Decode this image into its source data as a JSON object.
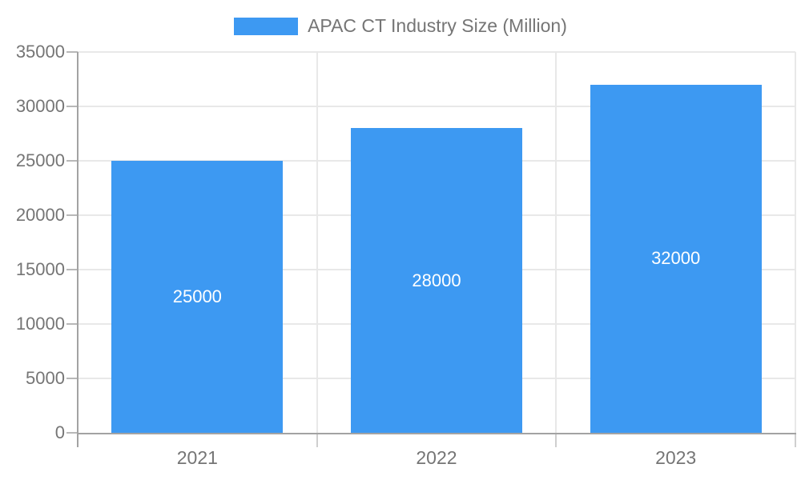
{
  "legend": {
    "label": "APAC CT Industry Size (Million)"
  },
  "colors": {
    "bar": "#3D99F2",
    "axis_line": "#A3A3A3",
    "grid_line": "#E8E8E8",
    "y_tick": "#B8B8B8",
    "x_tick": "#CFCFCF",
    "axis_text": "#757575",
    "bar_label_text": "#FFFFFF",
    "background": "#FFFFFF"
  },
  "chart_data": {
    "type": "bar",
    "title": "",
    "xlabel": "",
    "ylabel": "",
    "categories": [
      "2021",
      "2022",
      "2023"
    ],
    "series": [
      {
        "name": "APAC CT Industry Size (Million)",
        "values": [
          25000,
          28000,
          32000
        ],
        "color": "#3D99F2"
      }
    ],
    "bar_value_labels": [
      "25000",
      "28000",
      "32000"
    ],
    "value_label_position": "centered inside bar, white text",
    "ylim": [
      0,
      35000
    ],
    "yticks": [
      0,
      5000,
      10000,
      15000,
      20000,
      25000,
      30000,
      35000
    ],
    "grid": "light horizontal gridlines at each y tick; vertical separators between categories and at plot right edge",
    "legend_position": "top-center",
    "legend_marker": "blue rectangle swatch"
  }
}
